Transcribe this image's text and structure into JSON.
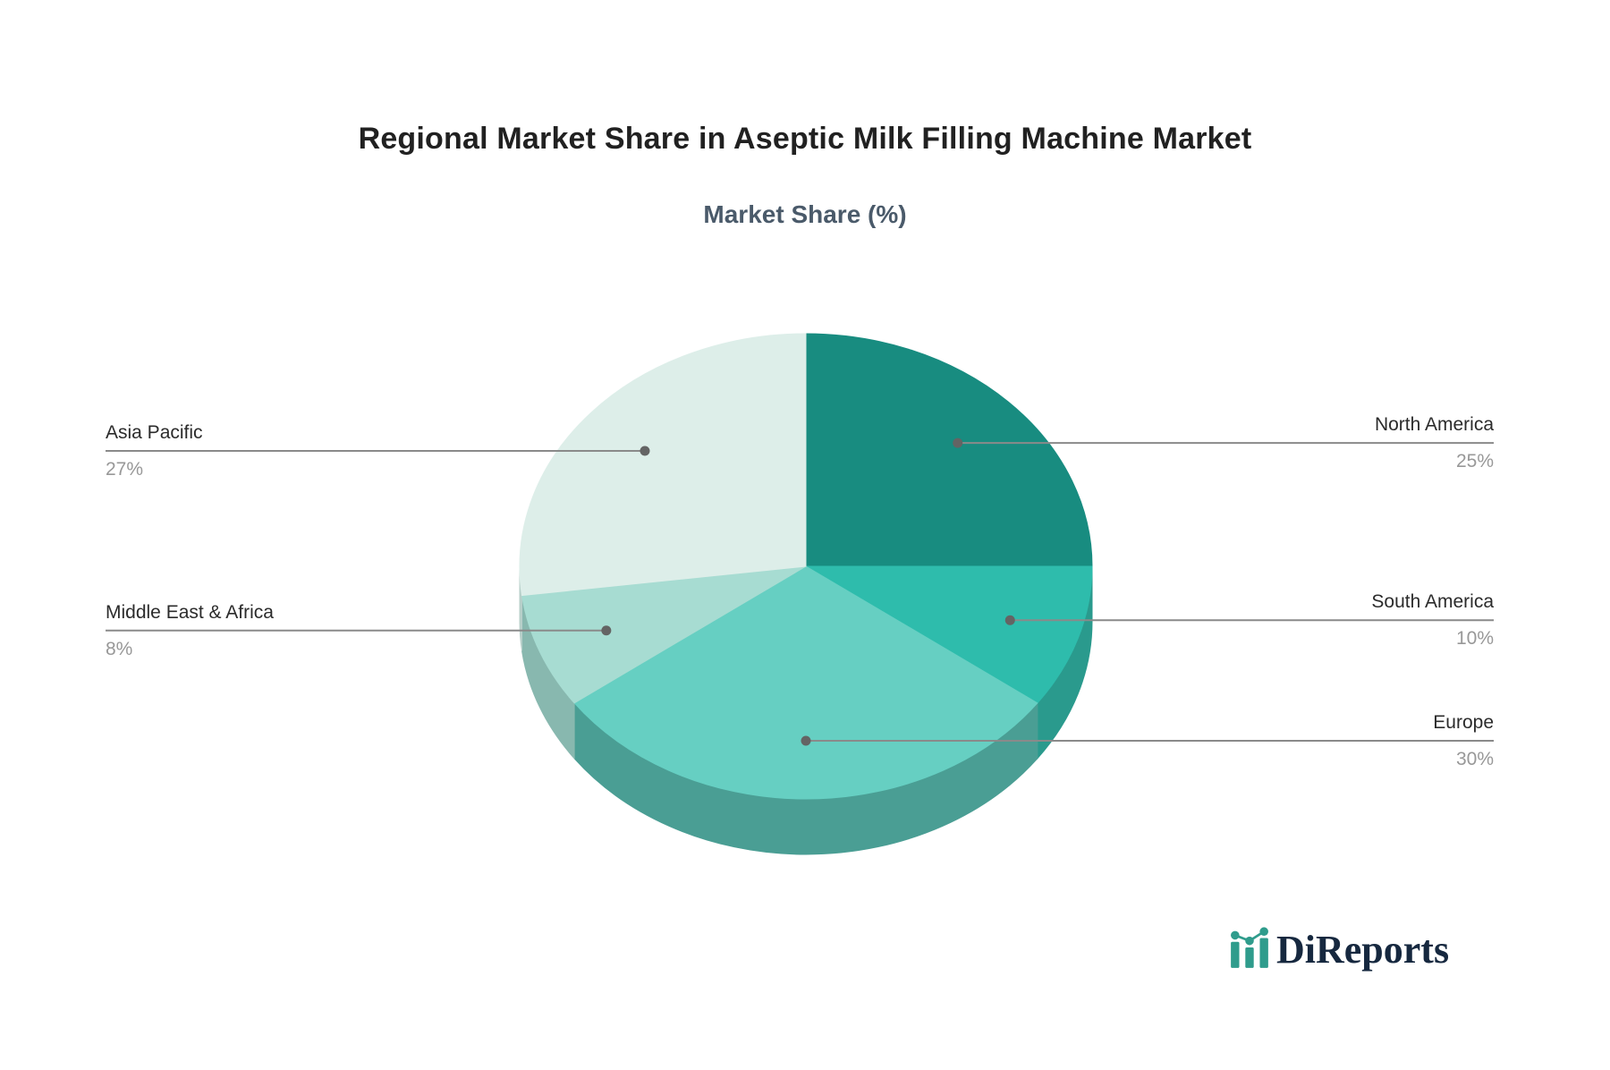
{
  "header": {
    "title": "Regional Market Share in Aseptic Milk Filling Machine Market",
    "subtitle": "Market Share (%)"
  },
  "chart_data": {
    "type": "pie",
    "title": "Regional Market Share in Aseptic Milk Filling Machine Market",
    "subtitle": "Market Share (%)",
    "unit": "%",
    "style": "3d",
    "start_angle_deg": 0,
    "direction": "clockwise",
    "legend_position": "callout-labels",
    "slices": [
      {
        "label": "North America",
        "value": 25,
        "percent_label": "25%",
        "color": "#188c80",
        "side_color": "#14786e",
        "label_side": "right"
      },
      {
        "label": "South America",
        "value": 10,
        "percent_label": "10%",
        "color": "#2ebcac",
        "side_color": "#2a9a8d",
        "label_side": "right"
      },
      {
        "label": "Europe",
        "value": 30,
        "percent_label": "30%",
        "color": "#66cfc2",
        "side_color": "#4a9e94",
        "label_side": "right"
      },
      {
        "label": "Middle East & Africa",
        "value": 8,
        "percent_label": "8%",
        "color": "#a7dcd2",
        "side_color": "#88b8af",
        "label_side": "left"
      },
      {
        "label": "Asia Pacific",
        "value": 27,
        "percent_label": "27%",
        "color": "#ddeee9",
        "side_color": "#b7cfc9",
        "label_side": "left"
      }
    ]
  },
  "branding": {
    "logo_text": "DiReports",
    "logo_icon": "bar-chart-trend-icon",
    "logo_text_color": "#16283f",
    "logo_icon_color": "#2f9c8c"
  },
  "colors": {
    "background": "#ffffff",
    "title": "#212121",
    "subtitle": "#4a5a6a",
    "label_text": "#2b2b2b",
    "percent_text": "#989898",
    "connector_line": "#8a8a8a",
    "connector_dot": "#646464"
  }
}
